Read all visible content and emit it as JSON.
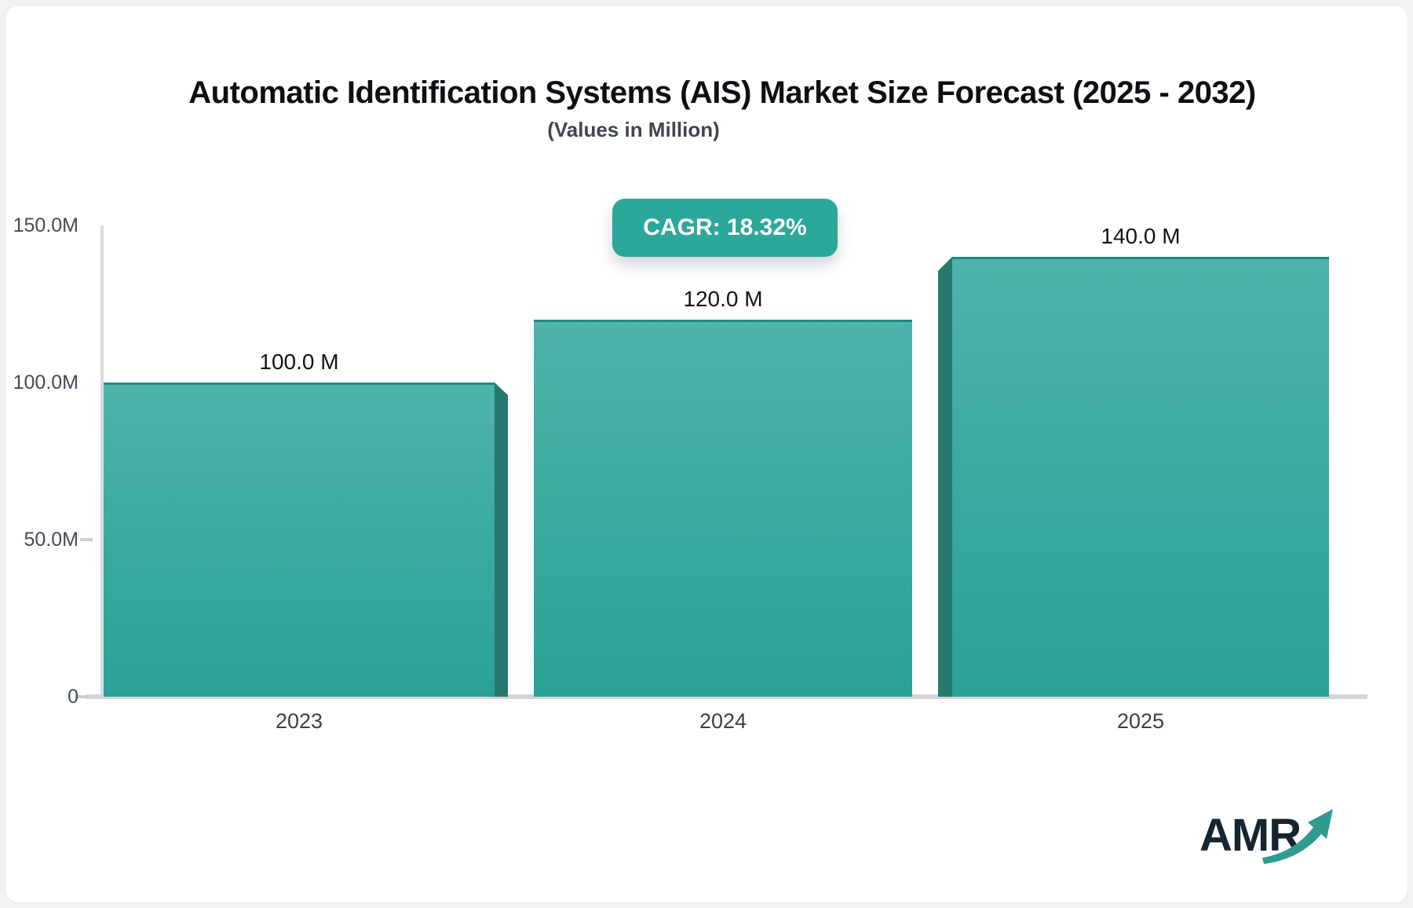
{
  "page": {
    "background_color": "#f2f3f5",
    "accent_color": "#2ba89a"
  },
  "header": {
    "title": "Automatic Identification Systems (AIS) Market Size Forecast (2025 - 2032)",
    "subtitle": "(Values in Million)"
  },
  "badge": {
    "label": "CAGR: 18.32%",
    "color": "#2ba89a",
    "text_color": "#ffffff"
  },
  "chart_data": {
    "type": "bar",
    "title": "Automatic Identification Systems (AIS) Market Size Forecast (2025 - 2032)",
    "subtitle": "(Values in Million)",
    "categories": [
      "2023",
      "2024",
      "2025"
    ],
    "values": [
      100.0,
      120.0,
      140.0
    ],
    "bar_labels": [
      "100.0 M",
      "120.0 M",
      "140.0 M"
    ],
    "ytick_labels": [
      "150.0M",
      "100.0M",
      "50.0M",
      "0"
    ],
    "ytick_values": [
      150,
      100,
      50,
      0
    ],
    "ylim": [
      0,
      150
    ],
    "xlabel": "",
    "ylabel": "",
    "grid": false,
    "legend": false,
    "bar_color_top": "#4eb3ab",
    "bar_color_bottom": "#2aa197",
    "bar_side_color": "#26796e",
    "cagr_annotation": "CAGR: 18.32%"
  },
  "logo": {
    "text": "AMR",
    "arrow_color": "#2f9b90"
  }
}
